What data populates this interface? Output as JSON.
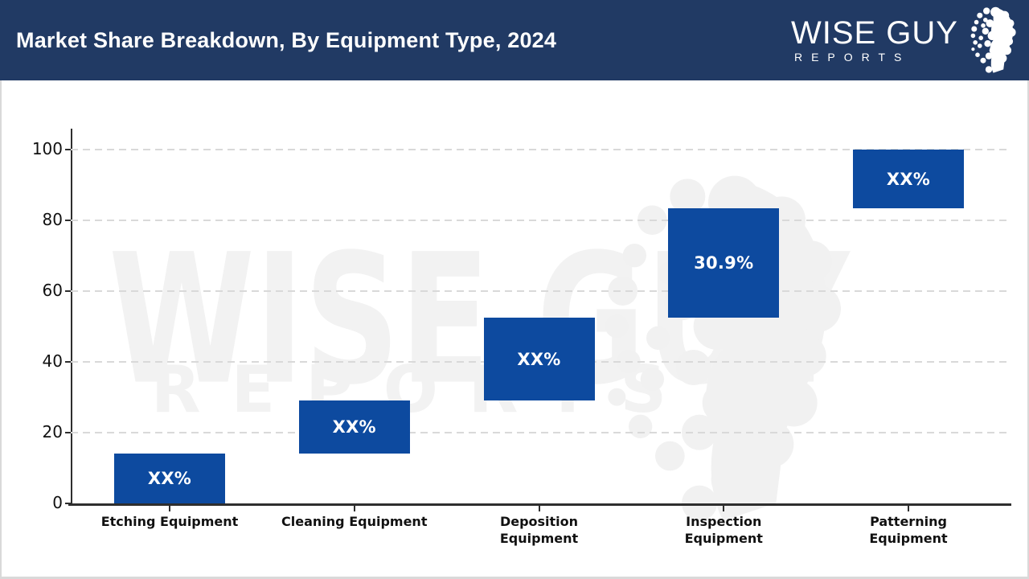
{
  "header": {
    "title": "Market Share Breakdown, By Equipment Type, 2024",
    "bg_color": "#213a64",
    "logo": {
      "name": "WISE GUY",
      "subtitle": "REPORTS"
    }
  },
  "watermark": {
    "title": "WISE GUY",
    "subtitle": "REPORTS"
  },
  "chart_data": {
    "type": "bar",
    "variant": "waterfall",
    "title": "Market Share Breakdown, By Equipment Type, 2024",
    "categories": [
      "Etching Equipment",
      "Cleaning Equipment",
      "Deposition Equipment",
      "Inspection Equipment",
      "Patterning Equipment"
    ],
    "category_lines": [
      [
        "Etching Equipment"
      ],
      [
        "Cleaning Equipment"
      ],
      [
        "Deposition",
        "Equipment"
      ],
      [
        "Inspection",
        "Equipment"
      ],
      [
        "Patterning",
        "Equipment"
      ]
    ],
    "segments": [
      {
        "category": "Etching Equipment",
        "start": 0,
        "end": 14,
        "label": "XX%"
      },
      {
        "category": "Cleaning Equipment",
        "start": 14,
        "end": 29,
        "label": "XX%"
      },
      {
        "category": "Deposition Equipment",
        "start": 29,
        "end": 52.5,
        "label": "XX%"
      },
      {
        "category": "Inspection Equipment",
        "start": 52.5,
        "end": 83.4,
        "label": "30.9%"
      },
      {
        "category": "Patterning Equipment",
        "start": 83.4,
        "end": 100,
        "label": "XX%"
      }
    ],
    "yticks": [
      0,
      20,
      40,
      60,
      80,
      100
    ],
    "ylim": [
      0,
      105
    ],
    "xlabel": "",
    "ylabel": "",
    "bar_color": "#0d4a9f",
    "bar_label_color": "#ffffff",
    "axis_color": "#2e2e2e",
    "gridline_color": "#d9d9d9",
    "gridline_style": "dashed",
    "grid": true,
    "legend": null
  }
}
